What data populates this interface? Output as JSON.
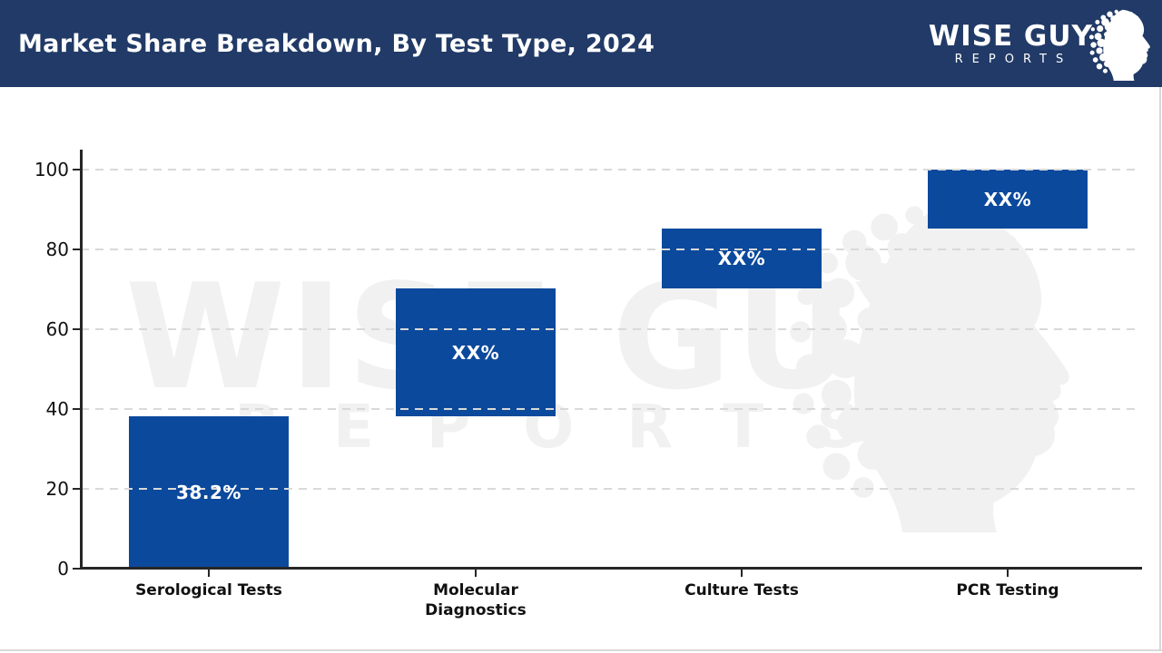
{
  "header": {
    "title": "Market Share Breakdown, By Test Type, 2024",
    "logo": {
      "name": "WISE GUY",
      "subname": "REPORTS"
    }
  },
  "watermark": {
    "name": "WISE GUY",
    "subname": "REPORTS"
  },
  "chart_data": {
    "type": "bar",
    "variant": "waterfall-stacked-percentage",
    "title": "Market Share Breakdown, By Test Type, 2024",
    "categories": [
      "Serological Tests",
      "Molecular\nDiagnostics",
      "Culture Tests",
      "PCR Testing"
    ],
    "series": [
      {
        "name": "Market share (%)",
        "segments": [
          {
            "category": "Serological Tests",
            "start": 0,
            "end": 38.2,
            "label": "38.2%"
          },
          {
            "category": "Molecular Diagnostics",
            "start": 38.2,
            "end": 70.2,
            "label": "XX%"
          },
          {
            "category": "Culture Tests",
            "start": 70.2,
            "end": 85.2,
            "label": "XX%"
          },
          {
            "category": "PCR Testing",
            "start": 85.2,
            "end": 100,
            "label": "XX%"
          }
        ]
      }
    ],
    "yticks": [
      0,
      20,
      40,
      60,
      80,
      100
    ],
    "ylim": [
      0,
      105
    ],
    "xlabel": "",
    "ylabel": "",
    "grid": "horizontal-dashed",
    "legend": "none",
    "bar_color": "#0b499c"
  },
  "colors": {
    "header_bg": "#213a67",
    "bar": "#0b499c",
    "grid": "#d9d9d9",
    "axis": "#262626",
    "watermark": "#f1f1f2"
  }
}
